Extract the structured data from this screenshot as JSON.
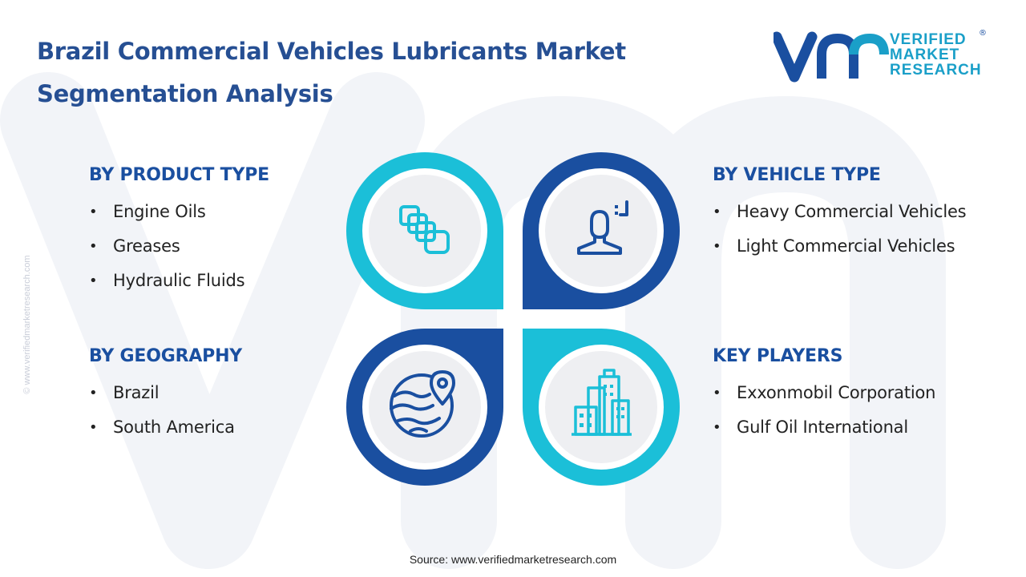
{
  "header": {
    "title_line1": "Brazil Commercial Vehicles Lubricants Market",
    "title_line2": "Segmentation Analysis"
  },
  "logo": {
    "line1": "VERIFIED",
    "line2": "MARKET",
    "line3": "RESEARCH",
    "registered": "®"
  },
  "side_watermark": "© www.verifiedmarketresearch.com",
  "segments": {
    "product_type": {
      "heading": "BY PRODUCT TYPE",
      "items": [
        "Engine Oils",
        "Greases",
        "Hydraulic Fluids"
      ]
    },
    "vehicle_type": {
      "heading": "BY VEHICLE TYPE",
      "items": [
        "Heavy Commercial Vehicles",
        "Light Commercial Vehicles"
      ]
    },
    "geography": {
      "heading": "BY GEOGRAPHY",
      "items": [
        "Brazil",
        "South America"
      ]
    },
    "key_players": {
      "heading": "KEY PLAYERS",
      "items": [
        "Exxonmobil Corporation",
        "Gulf Oil International"
      ]
    }
  },
  "icons": {
    "top_left": "stacked-boxes-icon",
    "top_right": "person-icon",
    "bottom_left": "globe-location-icon",
    "bottom_right": "city-buildings-icon"
  },
  "colors": {
    "title": "#264f93",
    "heading": "#1a4fa0",
    "dark_blue": "#1a4fa0",
    "cyan": "#1bbfd8",
    "logo_cyan": "#1a9fc8",
    "watermark": "#f1f3f8"
  },
  "footer": {
    "source": "Source: www.verifiedmarketresearch.com"
  }
}
